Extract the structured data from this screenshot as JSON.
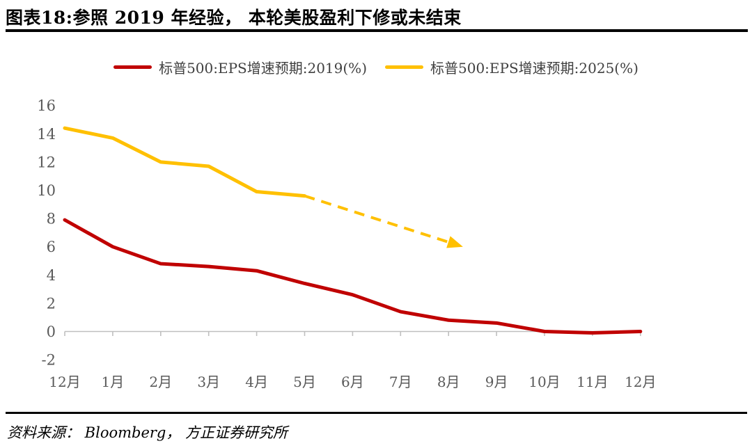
{
  "header": {
    "title": "图表18:参照 2019 年经验， 本轮美股盈利下修或未结束"
  },
  "chart_data": {
    "type": "line",
    "title": "图表18:参照 2019 年经验， 本轮美股盈利下修或未结束",
    "categories": [
      "12月",
      "1月",
      "2月",
      "3月",
      "4月",
      "5月",
      "6月",
      "7月",
      "8月",
      "9月",
      "10月",
      "11月",
      "12月"
    ],
    "series": [
      {
        "name": "标普500:EPS增速预期:2019(%)",
        "color": "#C00000",
        "style": "solid",
        "values": [
          7.9,
          6.0,
          4.8,
          4.6,
          4.3,
          3.4,
          2.6,
          1.4,
          0.8,
          0.6,
          0.0,
          -0.1,
          0.0
        ]
      },
      {
        "name": "标普500:EPS增速预期:2025(%)",
        "color": "#FFC000",
        "style": "solid",
        "values": [
          14.4,
          13.7,
          12.0,
          11.7,
          9.9,
          9.6,
          null,
          null,
          null,
          null,
          null,
          null,
          null
        ]
      }
    ],
    "projection": {
      "series": "标普500:EPS增速预期:2025(%)",
      "style": "dashed-arrow",
      "color": "#FFC000",
      "from": {
        "x_index": 5,
        "value": 9.6
      },
      "to": {
        "x_index": 8.3,
        "value": 6.0
      }
    },
    "ylim": [
      -2,
      16
    ],
    "ytick_step": 2,
    "grid": false,
    "legend_position": "top",
    "axis_color": "#BFBFBF",
    "tick_label_color": "#595959"
  },
  "footer": {
    "source": "资料来源： Bloomberg， 方正证券研究所"
  }
}
